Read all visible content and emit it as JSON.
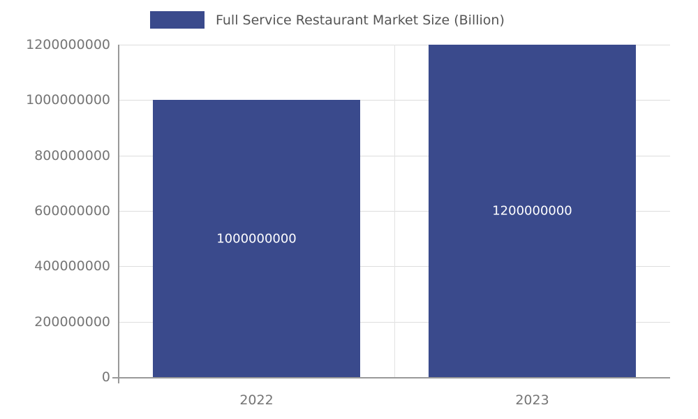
{
  "chart_data": {
    "type": "bar",
    "title": "Full Service Restaurant Market Size (Billion)",
    "categories": [
      "2022",
      "2023"
    ],
    "values": [
      1000000000,
      1200000000
    ],
    "value_labels": [
      "1000000000",
      "1200000000"
    ],
    "yticks": [
      0,
      200000000,
      400000000,
      600000000,
      800000000,
      1000000000,
      1200000000
    ],
    "ytick_labels": [
      "0",
      "200000000",
      "400000000",
      "600000000",
      "800000000",
      "1000000000",
      "1200000000"
    ],
    "ylim": [
      0,
      1200000000
    ],
    "xlabel": "",
    "ylabel": "",
    "grid": true,
    "legend_position": "top",
    "bar_color": "#3A4A8C",
    "value_label_color": "#ffffff",
    "tick_label_color": "#757575",
    "title_color": "#555555",
    "grid_color": "#dddddd",
    "axis_color": "#999999"
  }
}
